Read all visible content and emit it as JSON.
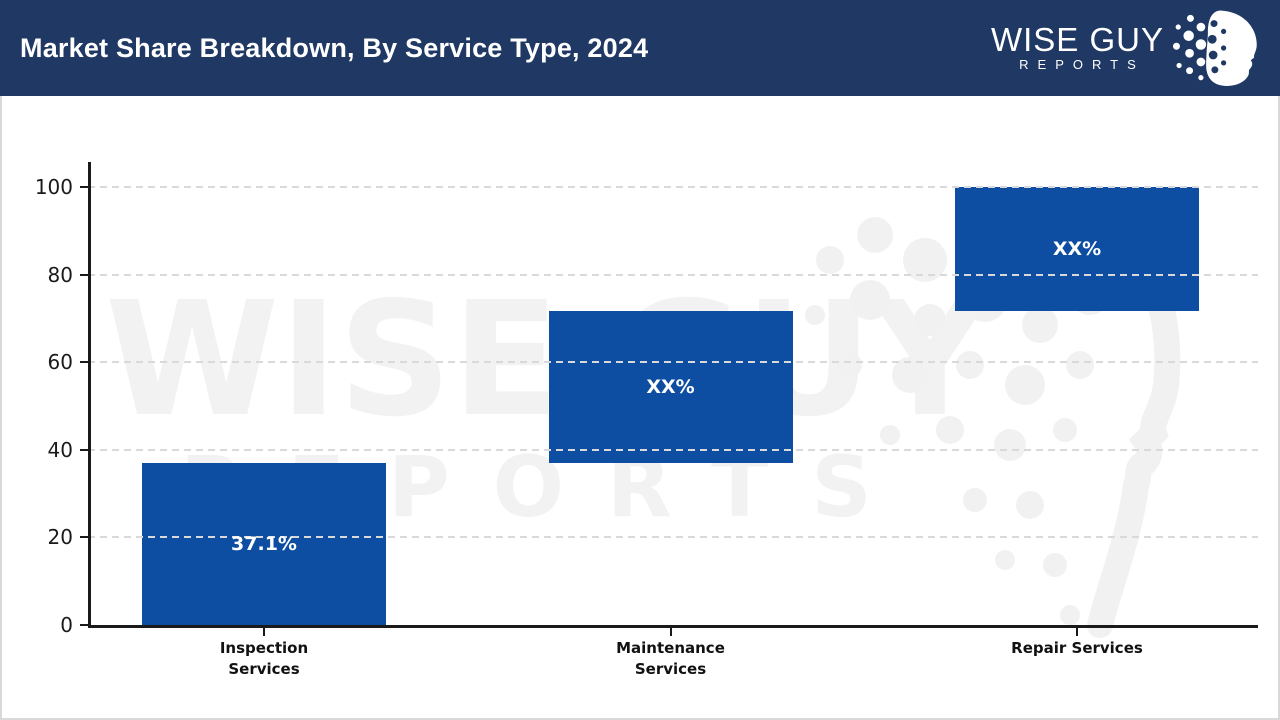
{
  "header": {
    "title": "Market Share Breakdown, By Service Type, 2024",
    "bg_color": "#1f3864",
    "logo": {
      "line1": "WISE GUY",
      "line2": "REPORTS"
    }
  },
  "watermark": {
    "line1": "WISE GUY",
    "line2": "REPORTS"
  },
  "chart_data": {
    "type": "bar",
    "subtype": "floating-segment-waterfall",
    "title": "Market Share Breakdown, By Service Type, 2024",
    "categories": [
      "Inspection Services",
      "Maintenance Services",
      "Repair Services"
    ],
    "category_label_lines": [
      [
        "Inspection",
        "Services"
      ],
      [
        "Maintenance",
        "Services"
      ],
      [
        "Repair Services"
      ]
    ],
    "segments": [
      {
        "category": "Inspection Services",
        "start": 0,
        "end": 37.1,
        "label": "37.1%",
        "estimated_height": 37.1
      },
      {
        "category": "Maintenance Services",
        "start": 37.1,
        "end": 71.6,
        "label": "XX%",
        "estimated_height": 34.5
      },
      {
        "category": "Repair Services",
        "start": 71.6,
        "end": 100,
        "label": "XX%",
        "estimated_height": 28.4
      }
    ],
    "xlabel": "",
    "ylabel": "",
    "ylim": [
      0,
      100
    ],
    "yticks": [
      0,
      20,
      40,
      60,
      80,
      100
    ],
    "grid": "horizontal dashed, drawn over bars",
    "legend": "none",
    "bar_color": "#0d4da2",
    "bar_label_color": "#ffffff",
    "axis_color": "#1a1a1a",
    "gridline_color": "#d9d9d9"
  }
}
